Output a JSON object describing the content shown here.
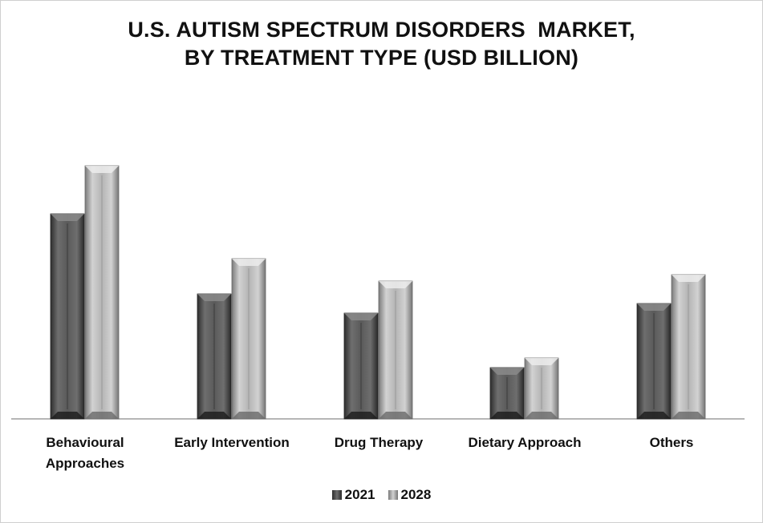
{
  "chart_data": {
    "type": "bar",
    "title_lines": [
      "U.S. AUTISM SPECTRUM DISORDERS  MARKET,",
      "BY TREATMENT TYPE (USD BILLION)"
    ],
    "categories": [
      [
        "Behavioural",
        "Approaches"
      ],
      [
        "Early Intervention"
      ],
      [
        "Drug Therapy"
      ],
      [
        "Dietary Approach"
      ],
      [
        "Others"
      ]
    ],
    "series": [
      {
        "name": "2021",
        "values": [
          6.4,
          3.9,
          3.3,
          1.6,
          3.6
        ]
      },
      {
        "name": "2028",
        "values": [
          7.9,
          5.0,
          4.3,
          1.9,
          4.5
        ]
      }
    ],
    "ylim": [
      0,
      10
    ],
    "grid": false,
    "legend_position": "bottom",
    "colors": {
      "2021": "#5a5a5a",
      "2028": "#b9b9b9"
    }
  }
}
